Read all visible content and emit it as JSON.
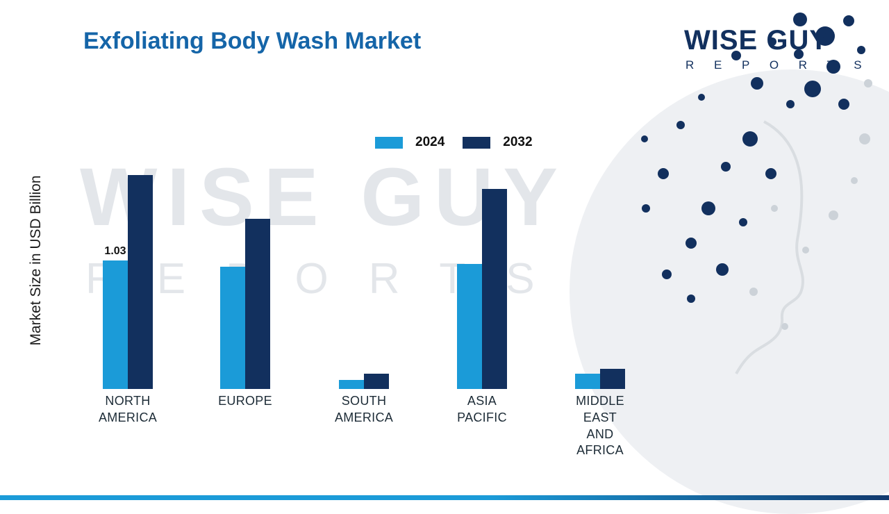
{
  "title": "Exfoliating Body Wash Market",
  "ylabel": "Market Size in USD Billion",
  "watermark": {
    "line1": "WISE GUY",
    "line2": "REPORTS"
  },
  "logo": {
    "line1": "WISE GUY",
    "line2": "R E P O R T S"
  },
  "colors": {
    "series_2024": "#1b9bd8",
    "series_2032": "#12305e",
    "title": "#1565a8",
    "watermark": "#e3e6ea"
  },
  "legend": [
    {
      "label": "2024",
      "color": "#1b9bd8"
    },
    {
      "label": "2032",
      "color": "#12305e"
    }
  ],
  "chart_data": {
    "type": "bar",
    "title": "Exfoliating Body Wash Market",
    "ylabel": "Market Size in USD Billion",
    "ylim": [
      0,
      1.8
    ],
    "grid": false,
    "legend_position": "top",
    "categories": [
      "NORTH AMERICA",
      "EUROPE",
      "SOUTH AMERICA",
      "ASIA PACIFIC",
      "MIDDLE EAST AND AFRICA"
    ],
    "category_lines": [
      [
        "NORTH",
        "AMERICA"
      ],
      [
        "EUROPE"
      ],
      [
        "SOUTH",
        "AMERICA"
      ],
      [
        "ASIA",
        "PACIFIC"
      ],
      [
        "MIDDLE",
        "EAST",
        "AND",
        "AFRICA"
      ]
    ],
    "series": [
      {
        "name": "2024",
        "color": "#1b9bd8",
        "values": [
          1.03,
          0.98,
          0.07,
          1.0,
          0.12
        ]
      },
      {
        "name": "2032",
        "color": "#12305e",
        "values": [
          1.71,
          1.36,
          0.12,
          1.6,
          0.16
        ]
      }
    ],
    "annotations": [
      {
        "text": "1.03",
        "series_index": 0,
        "category_index": 0
      }
    ]
  }
}
